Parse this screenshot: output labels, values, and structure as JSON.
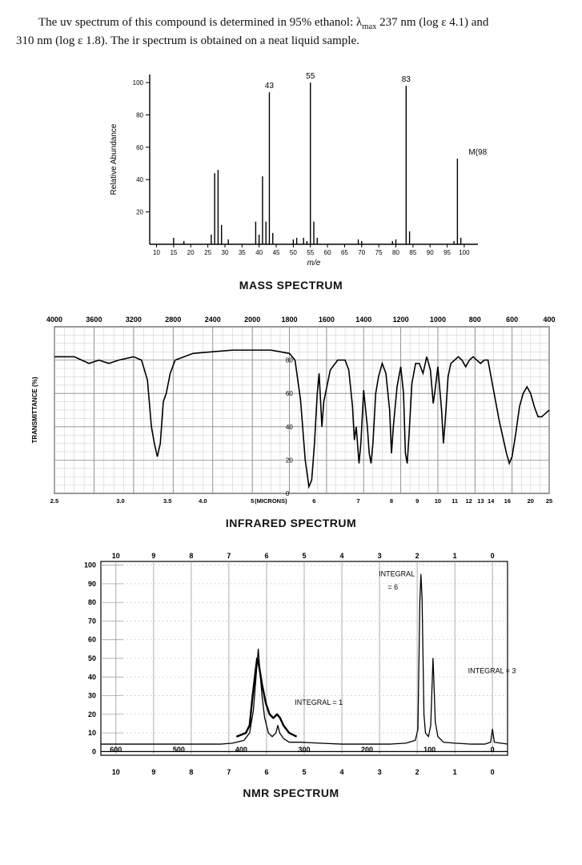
{
  "intro": {
    "line1_a": "The uv spectrum of this compound is determined in 95% ethanol: ",
    "lambda": "λ",
    "lambda_sub": "max",
    "line1_b": " 237 nm (log ε 4.1) and",
    "line2": "310 nm (log ε 1.8). The ir spectrum is obtained on a neat liquid sample."
  },
  "mass": {
    "caption": "MASS SPECTRUM",
    "axis_x_label": "m/e",
    "axis_y_label": "Relative Abundance",
    "x_ticks": [
      10,
      15,
      20,
      25,
      30,
      35,
      40,
      45,
      50,
      55,
      60,
      65,
      70,
      75,
      80,
      85,
      90,
      95,
      100
    ],
    "y_ticks": [
      20,
      40,
      60,
      80,
      100
    ],
    "xlim": [
      8,
      104
    ],
    "ylim": [
      0,
      105
    ],
    "tick_font": 8,
    "axis_font": 10,
    "line_color": "#000",
    "bg": "#fff",
    "peaks": [
      {
        "mz": 15,
        "ra": 4
      },
      {
        "mz": 18,
        "ra": 2
      },
      {
        "mz": 26,
        "ra": 6
      },
      {
        "mz": 27,
        "ra": 44
      },
      {
        "mz": 28,
        "ra": 46
      },
      {
        "mz": 29,
        "ra": 12
      },
      {
        "mz": 31,
        "ra": 3
      },
      {
        "mz": 39,
        "ra": 14
      },
      {
        "mz": 40,
        "ra": 6
      },
      {
        "mz": 41,
        "ra": 42
      },
      {
        "mz": 42,
        "ra": 14
      },
      {
        "mz": 43,
        "ra": 94
      },
      {
        "mz": 44,
        "ra": 7
      },
      {
        "mz": 50,
        "ra": 3
      },
      {
        "mz": 51,
        "ra": 4
      },
      {
        "mz": 53,
        "ra": 4
      },
      {
        "mz": 54,
        "ra": 2
      },
      {
        "mz": 55,
        "ra": 100
      },
      {
        "mz": 56,
        "ra": 14
      },
      {
        "mz": 57,
        "ra": 4
      },
      {
        "mz": 69,
        "ra": 3
      },
      {
        "mz": 70,
        "ra": 2
      },
      {
        "mz": 79,
        "ra": 2
      },
      {
        "mz": 80,
        "ra": 3
      },
      {
        "mz": 83,
        "ra": 98
      },
      {
        "mz": 84,
        "ra": 8
      },
      {
        "mz": 97,
        "ra": 2
      },
      {
        "mz": 98,
        "ra": 53
      },
      {
        "mz": 99,
        "ra": 4
      }
    ],
    "peak_labels": [
      {
        "mz": 43,
        "ra": 94,
        "text": "43"
      },
      {
        "mz": 55,
        "ra": 100,
        "text": "55"
      },
      {
        "mz": 83,
        "ra": 98,
        "text": "83"
      },
      {
        "mz": 98,
        "ra": 53,
        "text": "M(98)"
      }
    ]
  },
  "ir": {
    "caption": "INFRARED SPECTRUM",
    "axis_y_label": "TRANSMITTANCE (%)",
    "top_ticks_cm": [
      4000,
      3600,
      3200,
      2800,
      2400,
      2000,
      1800,
      1600,
      1400,
      1200,
      1000,
      800,
      600,
      400
    ],
    "bottom_ticks_um": [
      "2.5",
      "3.0",
      "3.5",
      "4.0",
      "5",
      "(MICRONS)",
      "6",
      "7",
      "8",
      "9",
      "10",
      "11",
      "12",
      "13",
      "14",
      "16",
      "20",
      "25"
    ],
    "bottom_tick_xs_cm": [
      4000,
      3333,
      2857,
      2500,
      2000,
      1900,
      1667,
      1429,
      1250,
      1111,
      1000,
      909,
      833,
      769,
      714,
      625,
      500,
      400
    ],
    "y_inner_ticks": [
      0,
      20,
      40,
      60,
      80
    ],
    "xlim_cm": [
      4000,
      400
    ],
    "ylim": [
      0,
      100
    ],
    "tick_font": 8,
    "grid_color": "#888",
    "fine_grid_color": "#bbb",
    "line_color": "#000",
    "bg": "#fff",
    "trace": [
      [
        4000,
        82
      ],
      [
        3800,
        82
      ],
      [
        3650,
        78
      ],
      [
        3550,
        80
      ],
      [
        3450,
        78
      ],
      [
        3350,
        80
      ],
      [
        3200,
        82
      ],
      [
        3120,
        80
      ],
      [
        3060,
        68
      ],
      [
        3020,
        40
      ],
      [
        2990,
        30
      ],
      [
        2960,
        22
      ],
      [
        2930,
        30
      ],
      [
        2900,
        55
      ],
      [
        2870,
        60
      ],
      [
        2830,
        72
      ],
      [
        2780,
        80
      ],
      [
        2600,
        84
      ],
      [
        2400,
        85
      ],
      [
        2200,
        86
      ],
      [
        2050,
        86
      ],
      [
        1950,
        86
      ],
      [
        1900,
        86
      ],
      [
        1850,
        85
      ],
      [
        1800,
        84
      ],
      [
        1770,
        80
      ],
      [
        1740,
        56
      ],
      [
        1715,
        20
      ],
      [
        1695,
        4
      ],
      [
        1680,
        8
      ],
      [
        1665,
        30
      ],
      [
        1650,
        60
      ],
      [
        1640,
        72
      ],
      [
        1625,
        40
      ],
      [
        1615,
        55
      ],
      [
        1580,
        74
      ],
      [
        1540,
        80
      ],
      [
        1500,
        80
      ],
      [
        1480,
        74
      ],
      [
        1460,
        52
      ],
      [
        1450,
        32
      ],
      [
        1440,
        40
      ],
      [
        1425,
        18
      ],
      [
        1415,
        30
      ],
      [
        1400,
        62
      ],
      [
        1380,
        40
      ],
      [
        1370,
        24
      ],
      [
        1360,
        18
      ],
      [
        1350,
        30
      ],
      [
        1335,
        60
      ],
      [
        1320,
        70
      ],
      [
        1300,
        78
      ],
      [
        1280,
        72
      ],
      [
        1260,
        50
      ],
      [
        1250,
        24
      ],
      [
        1240,
        40
      ],
      [
        1220,
        64
      ],
      [
        1200,
        76
      ],
      [
        1185,
        60
      ],
      [
        1175,
        24
      ],
      [
        1165,
        18
      ],
      [
        1155,
        36
      ],
      [
        1140,
        66
      ],
      [
        1120,
        78
      ],
      [
        1100,
        78
      ],
      [
        1080,
        72
      ],
      [
        1060,
        82
      ],
      [
        1040,
        74
      ],
      [
        1025,
        54
      ],
      [
        1015,
        62
      ],
      [
        1000,
        76
      ],
      [
        980,
        50
      ],
      [
        970,
        30
      ],
      [
        960,
        44
      ],
      [
        945,
        70
      ],
      [
        930,
        78
      ],
      [
        910,
        80
      ],
      [
        890,
        82
      ],
      [
        870,
        80
      ],
      [
        850,
        76
      ],
      [
        830,
        80
      ],
      [
        810,
        82
      ],
      [
        790,
        80
      ],
      [
        770,
        78
      ],
      [
        750,
        80
      ],
      [
        730,
        80
      ],
      [
        710,
        68
      ],
      [
        690,
        56
      ],
      [
        670,
        44
      ],
      [
        650,
        34
      ],
      [
        630,
        24
      ],
      [
        615,
        18
      ],
      [
        600,
        22
      ],
      [
        580,
        36
      ],
      [
        560,
        52
      ],
      [
        540,
        60
      ],
      [
        520,
        64
      ],
      [
        500,
        60
      ],
      [
        480,
        52
      ],
      [
        460,
        46
      ],
      [
        440,
        46
      ],
      [
        420,
        48
      ],
      [
        400,
        50
      ]
    ]
  },
  "nmr": {
    "caption": "NMR SPECTRUM",
    "top_ticks": [
      0,
      1,
      2,
      3,
      4,
      5,
      6,
      7,
      8,
      9,
      10
    ],
    "bottom_ticks_ppm": [
      10,
      9,
      8,
      7,
      6,
      5,
      4,
      3,
      2,
      1,
      0
    ],
    "bottom_ticks_hz": [
      "600",
      "500",
      "400",
      "300",
      "200",
      "100",
      "0"
    ],
    "bottom_hz_ppm": [
      10,
      8.33,
      6.67,
      5,
      3.33,
      1.67,
      0
    ],
    "y_ticks": [
      0,
      10,
      20,
      30,
      40,
      50,
      60,
      70,
      80,
      90,
      100
    ],
    "xlim_ppm": [
      10.4,
      -0.4
    ],
    "ylim": [
      -2,
      102
    ],
    "tick_font": 8,
    "grid_color": "#999",
    "dot_color": "#999",
    "line_color": "#000",
    "bg": "#fff",
    "integral_labels": [
      {
        "text": "INTEGRAL",
        "ppm": 3.02,
        "y": 94
      },
      {
        "text": "= 6",
        "ppm": 2.78,
        "y": 87
      },
      {
        "text": "INTEGRAL = 3",
        "ppm": 0.65,
        "y": 42
      },
      {
        "text": "INTEGRAL = 1",
        "ppm": 5.25,
        "y": 25
      }
    ],
    "spectrum": [
      [
        10.4,
        4
      ],
      [
        9.0,
        4
      ],
      [
        8.0,
        4
      ],
      [
        7.2,
        4
      ],
      [
        6.9,
        4.5
      ],
      [
        6.6,
        6
      ],
      [
        6.45,
        10
      ],
      [
        6.35,
        22
      ],
      [
        6.28,
        40
      ],
      [
        6.22,
        55
      ],
      [
        6.18,
        44
      ],
      [
        6.12,
        30
      ],
      [
        6.05,
        18
      ],
      [
        5.95,
        10
      ],
      [
        5.85,
        8
      ],
      [
        5.75,
        10
      ],
      [
        5.7,
        14
      ],
      [
        5.65,
        10
      ],
      [
        5.55,
        7
      ],
      [
        5.4,
        5
      ],
      [
        5.1,
        5
      ],
      [
        4.6,
        4.5
      ],
      [
        4.0,
        4
      ],
      [
        3.2,
        4
      ],
      [
        2.7,
        4
      ],
      [
        2.3,
        4.5
      ],
      [
        2.05,
        6
      ],
      [
        1.98,
        12
      ],
      [
        1.93,
        80
      ],
      [
        1.9,
        95
      ],
      [
        1.87,
        82
      ],
      [
        1.82,
        20
      ],
      [
        1.78,
        10
      ],
      [
        1.7,
        8
      ],
      [
        1.64,
        14
      ],
      [
        1.6,
        38
      ],
      [
        1.58,
        50
      ],
      [
        1.56,
        40
      ],
      [
        1.52,
        16
      ],
      [
        1.45,
        8
      ],
      [
        1.3,
        5
      ],
      [
        1.0,
        4.5
      ],
      [
        0.6,
        4
      ],
      [
        0.2,
        4
      ],
      [
        0.05,
        5
      ],
      [
        0.0,
        12
      ],
      [
        -0.05,
        5
      ],
      [
        -0.4,
        4
      ]
    ],
    "integral_trace": [
      [
        6.8,
        8
      ],
      [
        6.55,
        10
      ],
      [
        6.45,
        14
      ],
      [
        6.38,
        28
      ],
      [
        6.3,
        42
      ],
      [
        6.25,
        50
      ],
      [
        6.2,
        46
      ],
      [
        6.12,
        36
      ],
      [
        6.02,
        26
      ],
      [
        5.92,
        20
      ],
      [
        5.82,
        18
      ],
      [
        5.72,
        20
      ],
      [
        5.64,
        18
      ],
      [
        5.55,
        14
      ],
      [
        5.4,
        10
      ],
      [
        5.2,
        8
      ]
    ]
  }
}
